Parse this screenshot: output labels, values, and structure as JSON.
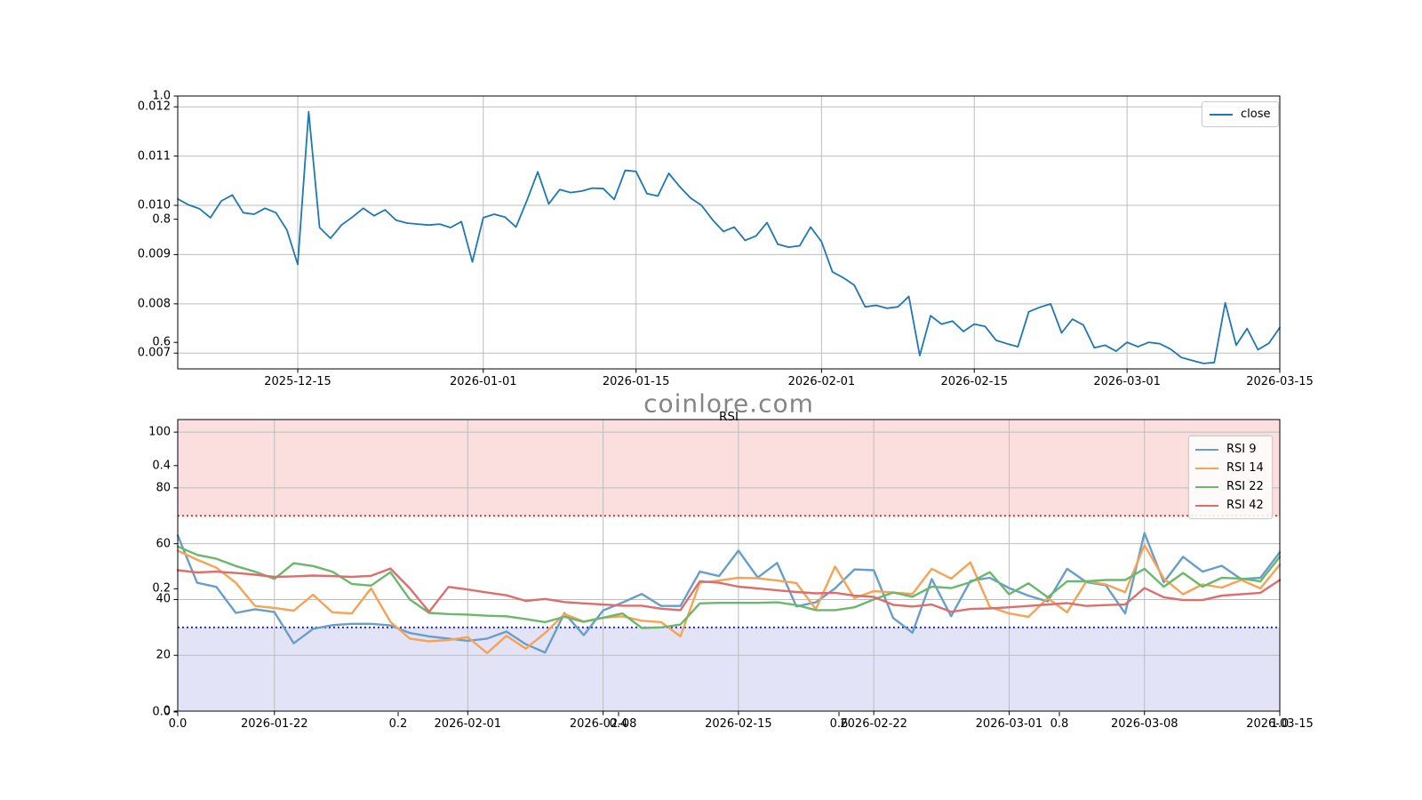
{
  "watermark": "coinlore.com",
  "colors": {
    "close_line": "#1f77b4",
    "rsi9_line": "#679fca",
    "rsi14_line": "#f7a254",
    "rsi22_line": "#6ab86a",
    "rsi42_line": "#dd6e6e",
    "overbought_band": "#fbdfdf",
    "oversold_band": "#e3e3f7",
    "overbought_dotted_line": "#ff0000",
    "oversold_dotted_line": "#0000ff",
    "grid": "#bdbdbd",
    "spine": "#000000",
    "watermark_color": "#858585"
  },
  "overlay_axis": {
    "xtick_labels": [
      "0.0",
      "0.2",
      "0.4",
      "0.6",
      "0.8",
      "1.0"
    ],
    "ytick_labels": [
      "1.0",
      "0.8",
      "0.6",
      "0.4",
      "0.2",
      "0.0"
    ]
  },
  "chart_data": [
    {
      "type": "line",
      "title": "",
      "x_start": "2025-12-04",
      "x_end": "2026-03-15",
      "x_total": 101,
      "xtick_labels": [
        "2025-12-15",
        "2026-01-01",
        "2026-01-15",
        "2026-02-01",
        "2026-02-15",
        "2026-03-01",
        "2026-03-15"
      ],
      "xtick_positions": [
        11,
        28,
        42,
        59,
        73,
        87,
        101
      ],
      "ytick_labels": [
        "0.007",
        "0.008",
        "0.009",
        "0.010",
        "0.011",
        "0.012"
      ],
      "ytick_values": [
        0.007,
        0.008,
        0.009,
        0.01,
        0.011,
        0.012
      ],
      "ylim": [
        0.00668,
        0.01222
      ],
      "grid": true,
      "legend_position": "upper right",
      "series": [
        {
          "name": "close",
          "color": "#1f77b4",
          "values": [
            0.01013,
            0.01001,
            0.00993,
            0.00975,
            0.01009,
            0.01021,
            0.00985,
            0.00982,
            0.00994,
            0.00985,
            0.0095,
            0.0088,
            0.0119,
            0.00955,
            0.00933,
            0.0096,
            0.00976,
            0.00994,
            0.00979,
            0.00991,
            0.0097,
            0.00964,
            0.00962,
            0.0096,
            0.00962,
            0.00955,
            0.00967,
            0.00885,
            0.00975,
            0.00982,
            0.00976,
            0.00956,
            0.0101,
            0.01068,
            0.01003,
            0.01032,
            0.01026,
            0.01029,
            0.01035,
            0.01034,
            0.01012,
            0.01071,
            0.01069,
            0.01024,
            0.01019,
            0.01065,
            0.01038,
            0.01015,
            0.01,
            0.00971,
            0.00947,
            0.00956,
            0.00929,
            0.00938,
            0.00965,
            0.00921,
            0.00915,
            0.00918,
            0.00956,
            0.00926,
            0.00865,
            0.00853,
            0.00838,
            0.00794,
            0.00797,
            0.00791,
            0.00794,
            0.00815,
            0.00695,
            0.00776,
            0.00759,
            0.00765,
            0.00744,
            0.00759,
            0.00754,
            0.00726,
            0.00719,
            0.00713,
            0.00784,
            0.00793,
            0.008,
            0.00741,
            0.00769,
            0.00757,
            0.00711,
            0.00716,
            0.00704,
            0.00722,
            0.00713,
            0.00722,
            0.00719,
            0.00708,
            0.00691,
            0.00685,
            0.00679,
            0.00681,
            0.00802,
            0.00716,
            0.0075,
            0.00707,
            0.0072,
            0.00752
          ]
        }
      ]
    },
    {
      "type": "line",
      "title": "RSI",
      "x_start": "2026-01-17",
      "x_end": "2026-03-15",
      "x_total": 57,
      "xtick_labels": [
        "2026-01-22",
        "2026-02-01",
        "2026-02-08",
        "2026-02-15",
        "2026-02-22",
        "2026-03-01",
        "2026-03-08",
        "2026-03-15"
      ],
      "xtick_positions": [
        5,
        15,
        22,
        29,
        36,
        43,
        50,
        57
      ],
      "ytick_labels": [
        "0",
        "20",
        "40",
        "60",
        "80",
        "100"
      ],
      "ytick_values": [
        0,
        20,
        40,
        60,
        80,
        100
      ],
      "ylim": [
        0,
        104.5
      ],
      "grid": true,
      "legend_position": "upper right",
      "overbought_level": 70,
      "oversold_level": 30,
      "series": [
        {
          "name": "RSI 9",
          "color": "#679fca",
          "values": [
            63.0,
            46.0,
            44.5,
            35.2,
            36.5,
            35.5,
            24.3,
            29.5,
            30.8,
            31.3,
            31.3,
            30.7,
            28.0,
            26.8,
            26.0,
            25.2,
            26.0,
            28.5,
            24.0,
            21.0,
            35.1,
            27.2,
            36.1,
            38.9,
            42.0,
            37.7,
            37.7,
            50.0,
            48.4,
            57.5,
            47.9,
            53.1,
            37.5,
            39.0,
            44.0,
            50.8,
            50.5,
            33.4,
            28.1,
            47.3,
            34.0,
            46.7,
            47.8,
            44.1,
            41.4,
            39.3,
            51.0,
            46.2,
            45.1,
            35.0,
            63.8,
            46.2,
            55.3,
            50.0,
            52.1,
            47.3,
            47.8,
            56.9
          ]
        },
        {
          "name": "RSI 14",
          "color": "#f7a254",
          "values": [
            57.5,
            54.3,
            51.4,
            46.0,
            37.7,
            37.0,
            36.0,
            41.7,
            35.4,
            35.0,
            44.0,
            32.0,
            26.0,
            25.0,
            25.5,
            26.5,
            20.8,
            27.0,
            22.4,
            28.0,
            34.8,
            32.1,
            33.5,
            34.0,
            32.4,
            31.9,
            26.8,
            46.0,
            46.8,
            47.8,
            47.6,
            46.8,
            45.9,
            36.5,
            51.8,
            40.5,
            43.0,
            42.5,
            42.0,
            51.0,
            47.5,
            53.3,
            37.3,
            35.0,
            33.8,
            40.5,
            35.4,
            46.6,
            45.4,
            42.6,
            59.5,
            47.5,
            41.9,
            45.4,
            44.3,
            47.0,
            44.0,
            52.5
          ]
        },
        {
          "name": "RSI 22",
          "color": "#6ab86a",
          "values": [
            59.0,
            56.0,
            54.6,
            52.0,
            50.0,
            47.4,
            53.0,
            52.0,
            50.0,
            45.6,
            45.0,
            49.8,
            40.0,
            35.2,
            34.8,
            34.6,
            34.2,
            34.0,
            33.0,
            31.9,
            33.8,
            32.0,
            33.5,
            35.0,
            29.8,
            30.0,
            31.0,
            38.6,
            38.8,
            38.8,
            38.8,
            39.0,
            38.0,
            36.2,
            36.2,
            37.2,
            40.0,
            42.5,
            41.0,
            44.6,
            44.1,
            46.2,
            49.8,
            41.9,
            45.8,
            40.8,
            46.5,
            46.5,
            47.0,
            47.0,
            51.0,
            44.6,
            49.5,
            44.6,
            47.8,
            47.5,
            46.5,
            55.3
          ]
        },
        {
          "name": "RSI 42",
          "color": "#dd6e6e",
          "values": [
            50.5,
            49.7,
            50.0,
            49.5,
            48.9,
            48.1,
            48.3,
            48.6,
            48.4,
            48.1,
            48.5,
            51.1,
            44.0,
            35.6,
            44.5,
            43.6,
            42.5,
            41.5,
            39.5,
            40.2,
            39.1,
            38.6,
            38.2,
            37.8,
            37.8,
            36.7,
            36.2,
            46.5,
            46.0,
            44.6,
            44.0,
            43.3,
            42.7,
            42.2,
            42.4,
            41.4,
            40.9,
            38.1,
            37.5,
            38.2,
            35.6,
            36.6,
            36.8,
            37.2,
            37.7,
            38.2,
            38.7,
            37.7,
            38.0,
            38.2,
            44.1,
            40.8,
            39.8,
            39.8,
            41.4,
            41.9,
            42.4,
            47.0
          ]
        }
      ]
    }
  ]
}
